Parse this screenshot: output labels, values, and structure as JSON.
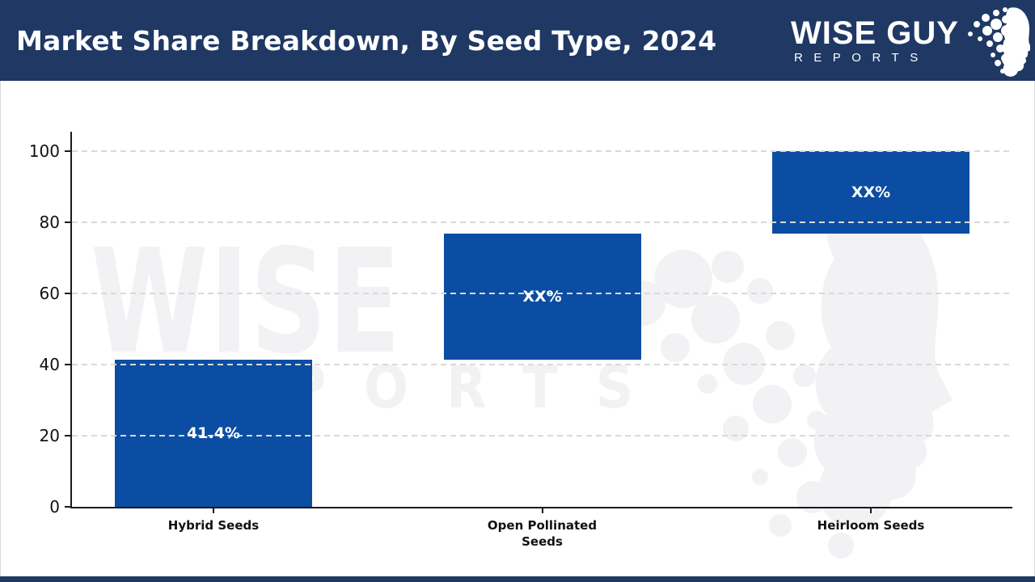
{
  "header": {
    "title": "Market Share Breakdown, By Seed Type, 2024",
    "logo": {
      "line1": "WISE GUY",
      "line2": "REPORTS"
    }
  },
  "watermark": {
    "line1": "WISE",
    "line2": "REPORTS"
  },
  "colors": {
    "header_bg": "#1f3864",
    "footer_bg": "#1f3864",
    "bar": "#0b4da2",
    "bar_label": "#ffffff",
    "grid": "#d9d9d9",
    "axis": "#1a1a1a",
    "watermark": "#f2f2f5"
  },
  "chart_data": {
    "type": "bar",
    "subtype": "waterfall",
    "title": "Market Share Breakdown, By Seed Type, 2024",
    "categories": [
      "Hybrid Seeds",
      "Open Pollinated Seeds",
      "Heirloom Seeds"
    ],
    "category_lines": [
      [
        "Hybrid Seeds"
      ],
      [
        "Open Pollinated",
        "Seeds"
      ],
      [
        "Heirloom Seeds"
      ]
    ],
    "segments": [
      {
        "category": "Hybrid Seeds",
        "start": 0,
        "end": 41.4,
        "label": "41.4%"
      },
      {
        "category": "Open Pollinated Seeds",
        "start": 41.4,
        "end": 76.7,
        "label": "XX%"
      },
      {
        "category": "Heirloom Seeds",
        "start": 76.7,
        "end": 100,
        "label": "XX%"
      }
    ],
    "yticks": [
      0,
      20,
      40,
      60,
      80,
      100
    ],
    "ylim": [
      0,
      105
    ],
    "xlabel": "",
    "ylabel": "",
    "grid": "horizontal-dashed",
    "legend": "none",
    "bar_color": "#0b4da2"
  }
}
